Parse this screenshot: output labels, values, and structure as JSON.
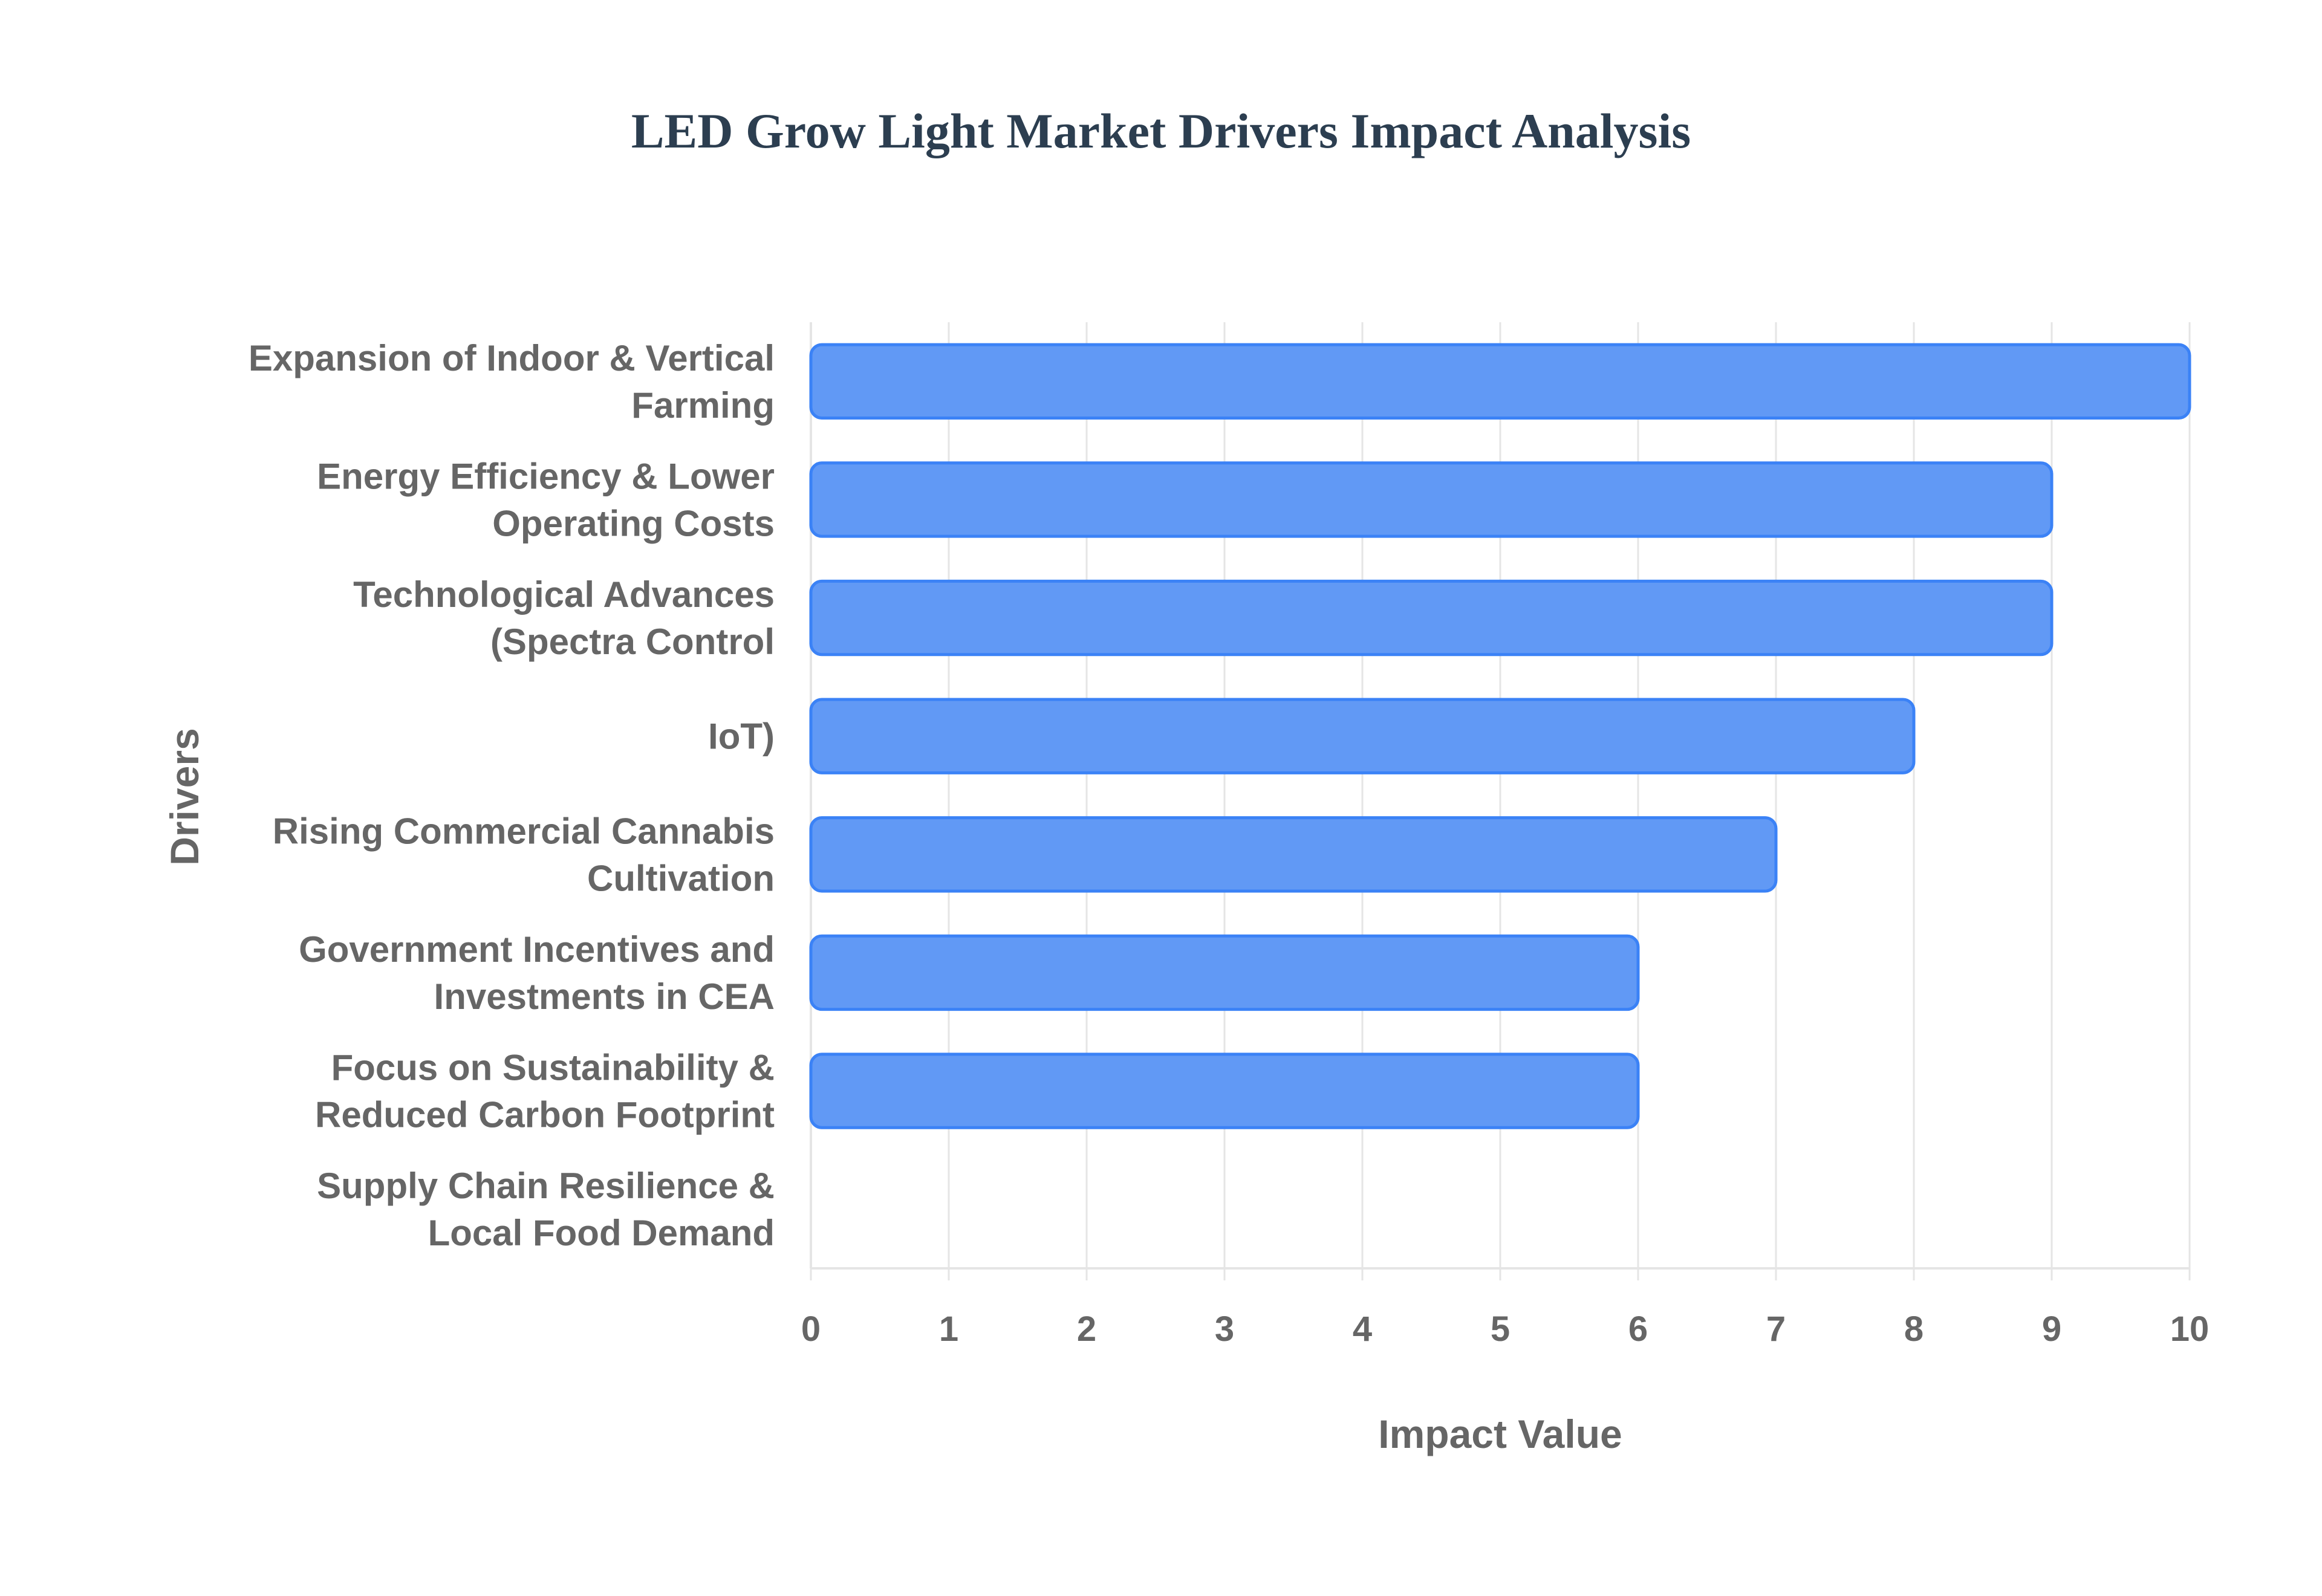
{
  "chart_data": {
    "type": "bar",
    "orientation": "horizontal",
    "title": "LED Grow Light Market Drivers Impact Analysis",
    "xlabel": "Impact Value",
    "ylabel": "Drivers",
    "xlim": [
      0,
      10
    ],
    "xticks": [
      "0",
      "1",
      "2",
      "3",
      "4",
      "5",
      "6",
      "7",
      "8",
      "9",
      "10"
    ],
    "grid": true,
    "categories": [
      [
        "Expansion of Indoor & Vertical",
        "Farming"
      ],
      [
        "Energy Efficiency & Lower",
        "Operating Costs"
      ],
      [
        "Technological Advances",
        "(Spectra Control"
      ],
      [
        "IoT)"
      ],
      [
        "Rising Commercial Cannabis",
        "Cultivation"
      ],
      [
        "Government Incentives and",
        "Investments in CEA"
      ],
      [
        "Focus on Sustainability &",
        "Reduced Carbon Footprint"
      ],
      [
        "Supply Chain Resilience &",
        "Local Food Demand"
      ]
    ],
    "values": [
      10,
      9,
      9,
      8,
      7,
      6,
      6,
      null
    ],
    "colors": {
      "bar_fill": "#6199f5",
      "bar_border": "#3b82f6",
      "grid": "#e5e5e5",
      "text": "#666666",
      "title": "#2c3e50"
    }
  }
}
